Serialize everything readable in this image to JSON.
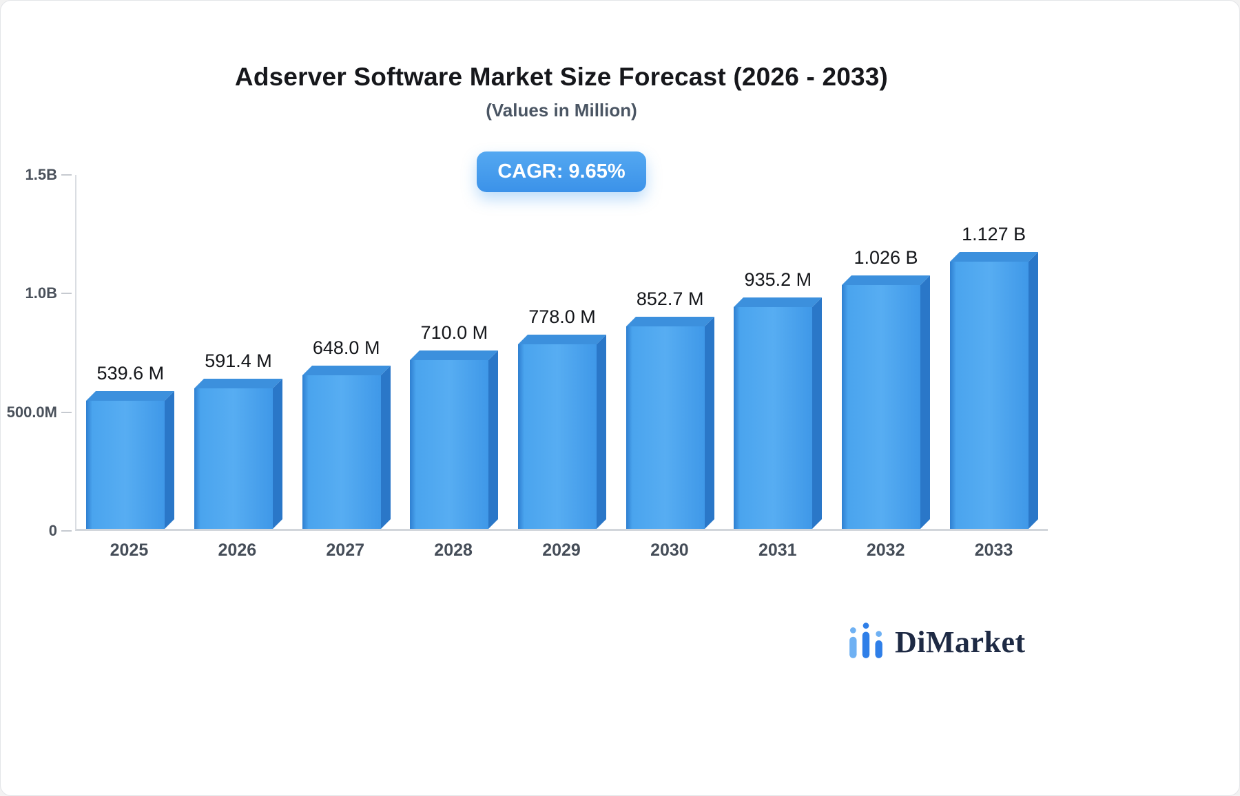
{
  "header": {
    "title": "Adserver Software Market Size Forecast (2026 - 2033)",
    "subtitle": "(Values in Million)",
    "cagr_badge": "CAGR: 9.65%"
  },
  "brand": {
    "name": "DiMarket",
    "icon": "mini-bar-chart-logo-icon"
  },
  "colors": {
    "accent_blue": "#3f9bed",
    "bar_face_light": "#57adf2",
    "bar_face_dark": "#3f98e8",
    "bar_side": "#2a77c8",
    "bar_top": "#3c90dd",
    "badge_text": "#ffffff",
    "title_text": "#16171b",
    "axis_text": "#4a515b",
    "value_text": "#14161a",
    "logo_text": "#1e2a44"
  },
  "chart_data": {
    "type": "bar",
    "title": "Adserver Software Market Size Forecast (2026 - 2033)",
    "subtitle": "(Values in Million)",
    "cagr": "9.65%",
    "bar_style": "3d",
    "grid": false,
    "legend": false,
    "unit": "Million",
    "categories": [
      "2025",
      "2026",
      "2027",
      "2028",
      "2029",
      "2030",
      "2031",
      "2032",
      "2033"
    ],
    "values": [
      539.6,
      591.4,
      648.0,
      710.0,
      778.0,
      852.7,
      935.2,
      1026,
      1127
    ],
    "value_labels": [
      "539.6 M",
      "591.4 M",
      "648.0 M",
      "710.0 M",
      "778.0 M",
      "852.7 M",
      "935.2 M",
      "1.026 B",
      "1.127 B"
    ],
    "ylim": [
      0,
      1500
    ],
    "yticks": [
      {
        "value": 1500,
        "label": "1.5B"
      },
      {
        "value": 1000,
        "label": "1.0B"
      },
      {
        "value": 500,
        "label": "500.0M"
      },
      {
        "value": 0,
        "label": "0"
      }
    ]
  }
}
